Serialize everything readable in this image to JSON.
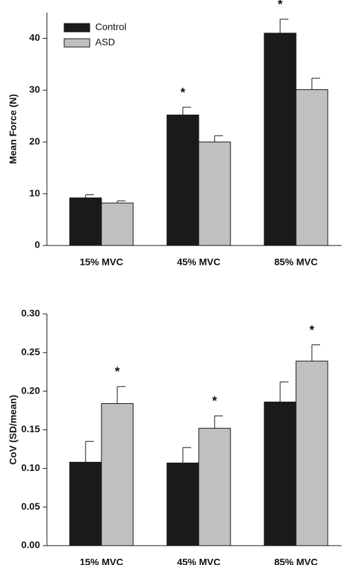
{
  "chart_data": [
    {
      "type": "bar",
      "y_label": "Mean Force (N)",
      "categories": [
        "15% MVC",
        "45% MVC",
        "85% MVC"
      ],
      "series": [
        {
          "name": "Control",
          "color": "#1a1a1a",
          "values": [
            9.2,
            25.2,
            41.0
          ],
          "errors": [
            0.6,
            1.5,
            2.7
          ],
          "significance": [
            null,
            "*",
            "*"
          ]
        },
        {
          "name": "ASD",
          "color": "#c0c0c0",
          "values": [
            8.2,
            20.0,
            30.1
          ],
          "errors": [
            0.4,
            1.2,
            2.2
          ],
          "significance": [
            null,
            null,
            null
          ]
        }
      ],
      "ylim": [
        0,
        45
      ],
      "yticks": [
        0,
        10,
        20,
        30,
        40
      ],
      "legend": "upper-left"
    },
    {
      "type": "bar",
      "y_label": "CoV (SD/mean)",
      "categories": [
        "15% MVC",
        "45% MVC",
        "85% MVC"
      ],
      "series": [
        {
          "name": "Control",
          "color": "#1a1a1a",
          "values": [
            0.108,
            0.107,
            0.186
          ],
          "errors": [
            0.027,
            0.02,
            0.026
          ],
          "significance": [
            null,
            null,
            null
          ]
        },
        {
          "name": "ASD",
          "color": "#c0c0c0",
          "values": [
            0.184,
            0.152,
            0.239
          ],
          "errors": [
            0.022,
            0.016,
            0.021
          ],
          "significance": [
            "*",
            "*",
            "*"
          ]
        }
      ],
      "ylim": [
        0,
        0.3
      ],
      "yticks": [
        {
          "value": 0,
          "label": "0.00"
        },
        {
          "value": 0.05,
          "label": "0.05"
        },
        {
          "value": 0.1,
          "label": "0.10"
        },
        {
          "value": 0.15,
          "label": "0.15"
        },
        {
          "value": 0.2,
          "label": "0.20"
        },
        {
          "value": 0.25,
          "label": "0.25"
        },
        {
          "value": 0.3,
          "label": "0.30"
        }
      ]
    }
  ]
}
